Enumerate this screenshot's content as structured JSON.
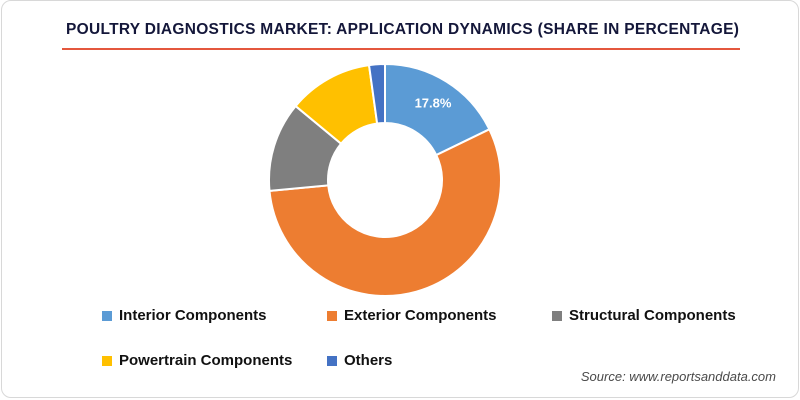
{
  "header": {
    "title": "POULTRY DIAGNOSTICS MARKET: APPLICATION DYNAMICS (SHARE IN PERCENTAGE)"
  },
  "colors": {
    "accent_underline": "#e4573d",
    "title_text": "#14173a",
    "border": "#d8d8d8",
    "source_text": "#4a4a4a"
  },
  "chart_data": {
    "type": "pie",
    "donut": true,
    "title": "POULTRY DIAGNOSTICS MARKET: APPLICATION DYNAMICS (SHARE IN PERCENTAGE)",
    "legend_position": "bottom",
    "start_angle_deg": 0,
    "slices": [
      {
        "label": "Interior Components",
        "value": 17.8,
        "color": "#5b9bd5",
        "data_label": "17.8%"
      },
      {
        "label": "Exterior Components",
        "value": 55.7,
        "color": "#ed7d31",
        "data_label": ""
      },
      {
        "label": "Structural Components",
        "value": 12.5,
        "color": "#7f7f7f",
        "data_label": ""
      },
      {
        "label": "Powertrain Components",
        "value": 11.8,
        "color": "#ffc000",
        "data_label": ""
      },
      {
        "label": "Others",
        "value": 2.2,
        "color": "#4472c4",
        "data_label": ""
      }
    ]
  },
  "footer": {
    "source": "Source: www.reportsanddata.com"
  }
}
